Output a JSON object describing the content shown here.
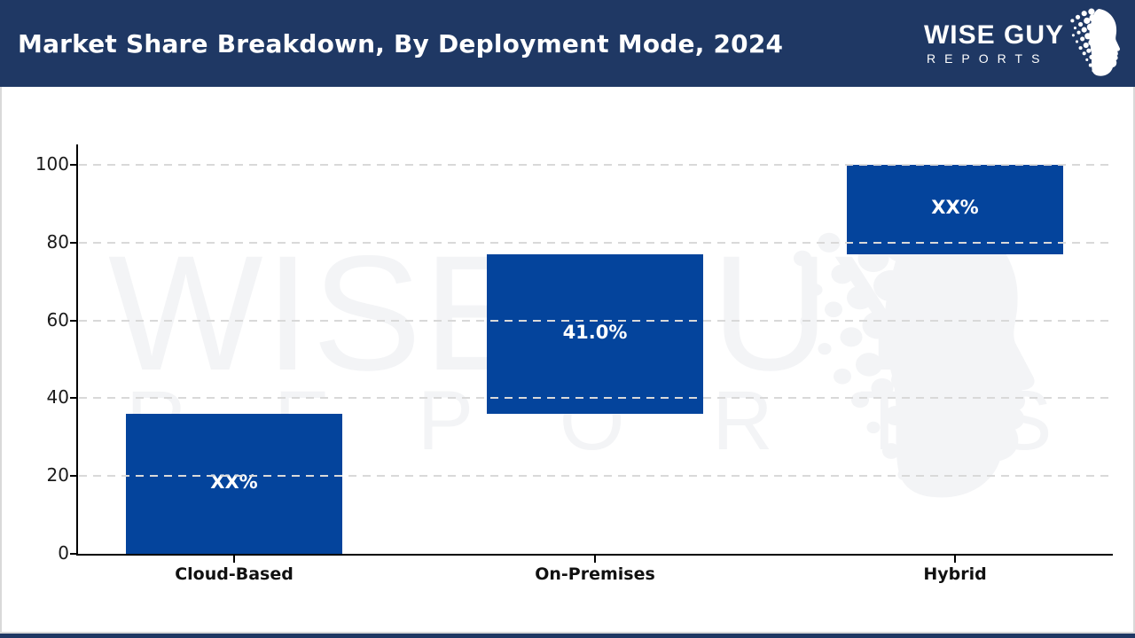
{
  "header": {
    "title": "Market Share Breakdown, By Deployment Mode, 2024",
    "logo_line1": "WISE GUY",
    "logo_line2": "REPORTS"
  },
  "watermark": {
    "line1": "WISE GUY",
    "line2": "R E P O R T S"
  },
  "chart_data": {
    "type": "bar",
    "variant": "waterfall",
    "title": "Market Share Breakdown, By Deployment Mode, 2024",
    "categories": [
      "Cloud-Based",
      "On-Premises",
      "Hybrid"
    ],
    "segments": [
      {
        "category": "Cloud-Based",
        "start": 0,
        "end": 36,
        "label": "XX%"
      },
      {
        "category": "On-Premises",
        "start": 36,
        "end": 77,
        "label": "41.0%"
      },
      {
        "category": "Hybrid",
        "start": 77,
        "end": 100,
        "label": "XX%"
      }
    ],
    "ylim": [
      0,
      100
    ],
    "yticks": [
      0,
      20,
      40,
      60,
      80,
      100
    ],
    "xlabel": "",
    "ylabel": "",
    "legend": "none",
    "grid": {
      "axis": "y",
      "style": "dashed",
      "above_bars": true
    }
  },
  "colors": {
    "header_bg": "#1f3864",
    "bar": "#04449c",
    "grid": "#d9d9d9",
    "axis": "#000000",
    "watermark": "#f3f4f6",
    "card_border": "#d9d9d9",
    "title_text": "#ffffff",
    "bar_label_text": "#ffffff"
  }
}
